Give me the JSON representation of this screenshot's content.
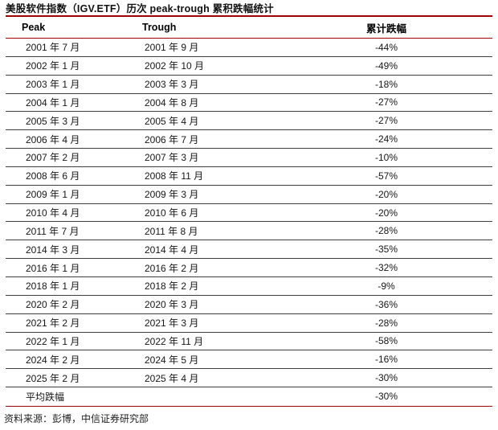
{
  "title": "美股软件指数（IGV.ETF）历次 peak-trough 累积跌幅统计",
  "table": {
    "headers": [
      "Peak",
      "Trough",
      "累计跌幅"
    ],
    "rows": [
      [
        "2001 年 7 月",
        "2001 年 9 月",
        "-44%"
      ],
      [
        "2002 年 1 月",
        "2002 年 10 月",
        "-49%"
      ],
      [
        "2003 年 1 月",
        "2003 年 3 月",
        "-18%"
      ],
      [
        "2004 年 1 月",
        "2004 年 8 月",
        "-27%"
      ],
      [
        "2005 年 3 月",
        "2005 年 4 月",
        "-27%"
      ],
      [
        "2006 年 4 月",
        "2006 年 7 月",
        "-24%"
      ],
      [
        "2007 年 2 月",
        "2007 年 3 月",
        "-10%"
      ],
      [
        "2008 年 6 月",
        "2008 年 11 月",
        "-57%"
      ],
      [
        "2009 年 1 月",
        "2009 年 3 月",
        "-20%"
      ],
      [
        "2010 年 4 月",
        "2010 年 6 月",
        "-20%"
      ],
      [
        "2011 年 7 月",
        "2011 年 8 月",
        "-28%"
      ],
      [
        "2014 年 3 月",
        "2014 年 4 月",
        "-35%"
      ],
      [
        "2016 年 1 月",
        "2016 年 2 月",
        "-32%"
      ],
      [
        "2018 年 1 月",
        "2018 年 2 月",
        "-9%"
      ],
      [
        "2020 年 2 月",
        "2020 年 3 月",
        "-36%"
      ],
      [
        "2021 年 2 月",
        "2021 年 3 月",
        "-28%"
      ],
      [
        "2022 年 1 月",
        "2022 年 11 月",
        "-58%"
      ],
      [
        "2024 年 2 月",
        "2024 年 5 月",
        "-16%"
      ],
      [
        "2025 年 2 月",
        "2025 年 4 月",
        "-30%"
      ],
      [
        "平均跌幅",
        "",
        "-30%"
      ]
    ],
    "average_row_label": "平均跌幅",
    "average_row_value": "-30%"
  },
  "source": "资料来源：彭博，中信证券研究部",
  "colors": {
    "accent_red": "#a00000",
    "row_separator": "#3f3f3f",
    "text": "#1a1a1a"
  }
}
